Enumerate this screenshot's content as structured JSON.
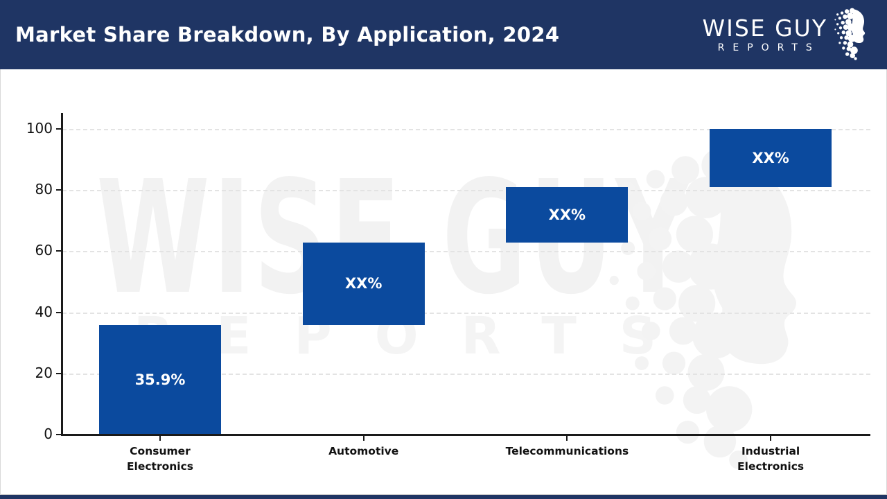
{
  "header": {
    "title": "Market Share Breakdown, By Application, 2024",
    "logo": {
      "brand": "WISE GUY",
      "sub": "REPORTS"
    }
  },
  "watermark": {
    "brand": "WISE GUY",
    "sub": "REPORTS"
  },
  "colors": {
    "header_bg": "#1f3564",
    "bar_fill": "#0b4a9e",
    "bar_label_text": "#ffffff",
    "gridline": "#e3e3e3",
    "axis": "#1a1a1a",
    "watermark": "#f2f2f2"
  },
  "chart_data": {
    "type": "bar",
    "subtype": "floating-waterfall",
    "title": "Market Share Breakdown, By Application, 2024",
    "categories": [
      [
        "Consumer",
        "Electronics"
      ],
      [
        "Automotive"
      ],
      [
        "Telecommunications"
      ],
      [
        "Industrial",
        "Electronics"
      ]
    ],
    "bars": [
      {
        "category": "Consumer Electronics",
        "base": 0,
        "top": 35.9,
        "label": "35.9%"
      },
      {
        "category": "Automotive",
        "base": 35.9,
        "top": 62.8,
        "label": "XX%"
      },
      {
        "category": "Telecommunications",
        "base": 62.8,
        "top": 81.0,
        "label": "XX%"
      },
      {
        "category": "Industrial Electronics",
        "base": 81.0,
        "top": 100.0,
        "label": "XX%"
      }
    ],
    "yticks": [
      "0",
      "20",
      "40",
      "60",
      "80",
      "100"
    ],
    "ylim": [
      0,
      105
    ],
    "xlabel": "",
    "ylabel": "",
    "grid": "horizontal-dashed",
    "legend": "none"
  }
}
